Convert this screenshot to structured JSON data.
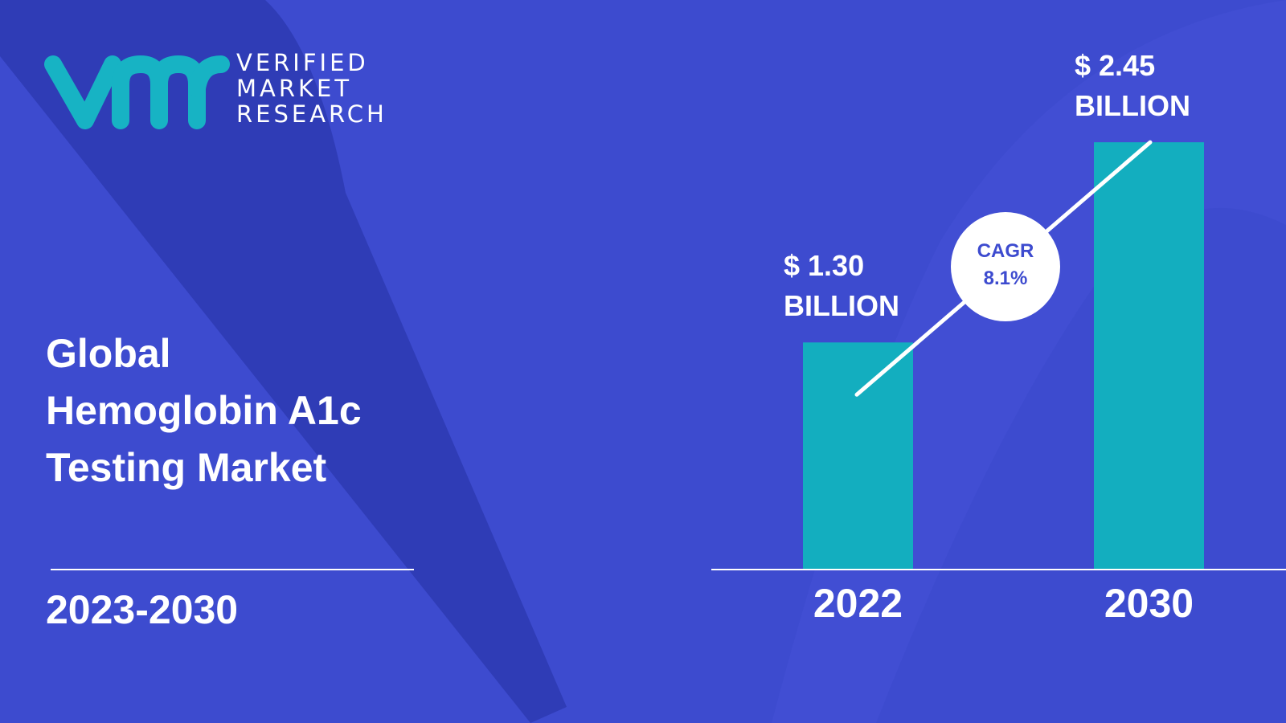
{
  "logo": {
    "text": "VERIFIED\nMARKET\nRESEARCH"
  },
  "title": "Global\nHemoglobin A1c\nTesting Market",
  "period": "2023-2030",
  "chart_data": {
    "type": "bar",
    "categories": [
      "2022",
      "2030"
    ],
    "values": [
      1.3,
      2.45
    ],
    "value_labels": [
      "$ 1.30\nBILLION",
      "$ 2.45\nBILLION"
    ],
    "color": "#13aebf",
    "annotation": "CAGR\n8.1%"
  }
}
